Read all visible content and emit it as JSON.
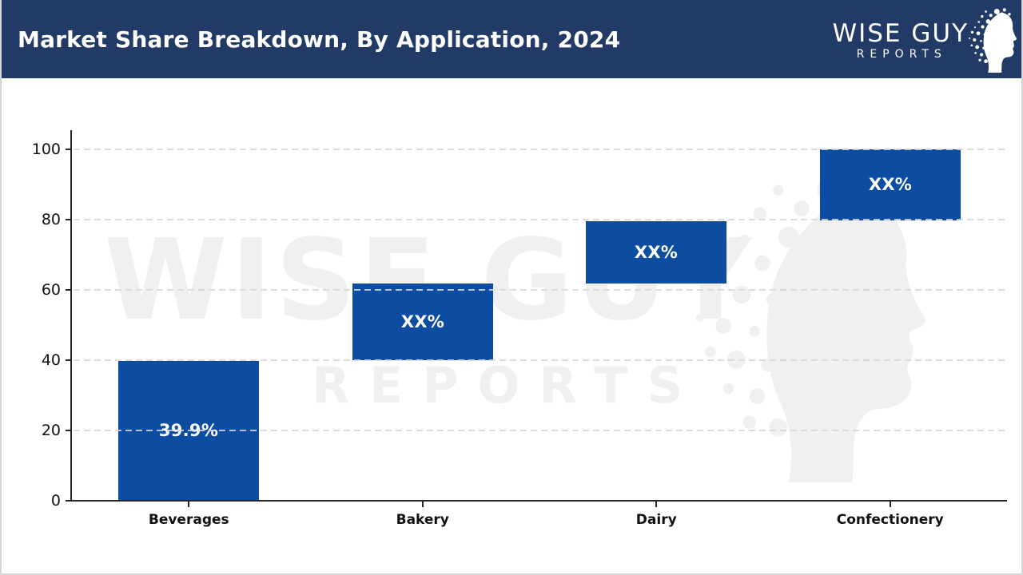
{
  "header": {
    "title": "Market Share Breakdown, By Application, 2024",
    "logo": {
      "wordmark": "WISE GUY",
      "subtext": "REPORTS"
    }
  },
  "watermark": {
    "wordmark": "WISE GUY",
    "subtext": "REPORTS"
  },
  "chart_data": {
    "type": "bar",
    "subtype": "waterfall",
    "title": "Market Share Breakdown, By Application, 2024",
    "categories": [
      "Beverages",
      "Bakery",
      "Dairy",
      "Confectionery"
    ],
    "segments": [
      {
        "category": "Beverages",
        "start": 0,
        "end": 39.9,
        "label": "39.9%"
      },
      {
        "category": "Bakery",
        "start": 40,
        "end": 61.9,
        "label": "XX%"
      },
      {
        "category": "Dairy",
        "start": 61.9,
        "end": 79.5,
        "label": "XX%"
      },
      {
        "category": "Confectionery",
        "start": 79.9,
        "end": 100,
        "label": "XX%"
      }
    ],
    "yticks": [
      0,
      20,
      40,
      60,
      80,
      100
    ],
    "ylim": [
      0,
      105.5
    ],
    "xlabel": "",
    "ylabel": "",
    "grid": "horizontal-dashed",
    "legend": "none",
    "bar_color": "#0c4da2",
    "bar_label_color": "#ffffff",
    "axis_color": "#262626",
    "grid_color": "#d9d9d9",
    "header_bg": "#213a66"
  }
}
